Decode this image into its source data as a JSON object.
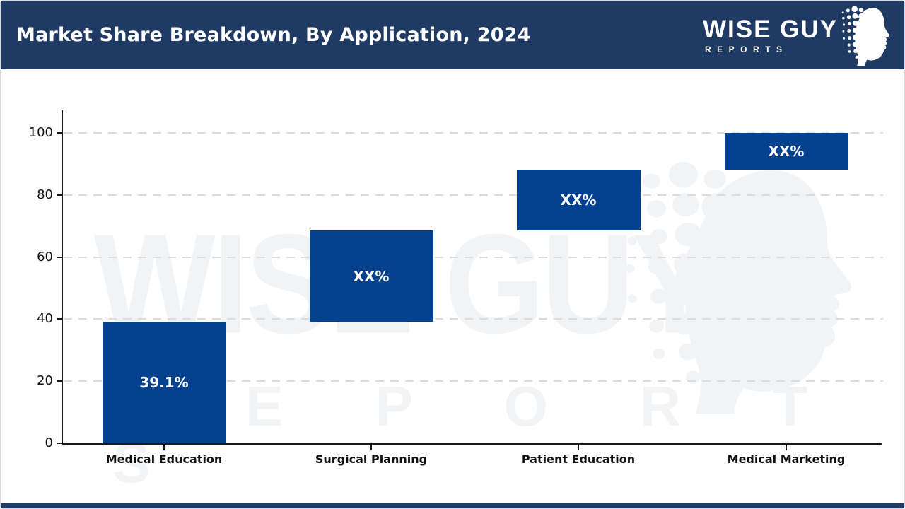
{
  "header": {
    "title": "Market Share Breakdown, By Application, 2024",
    "bg_color": "#1F3A63",
    "logo": {
      "line1": "WISE GUY",
      "line2": "REPORTS"
    }
  },
  "footer": {
    "bg_color": "#1F3A63"
  },
  "watermark": {
    "line1": "WISE GUY",
    "line2": "R E P O R T S",
    "color": "#F2F3F5"
  },
  "chart_data": {
    "type": "bar",
    "subtype": "waterfall",
    "title": "Market Share Breakdown, By Application, 2024",
    "xlabel": "",
    "ylabel": "",
    "categories": [
      "Medical Education",
      "Surgical Planning",
      "Patient Education",
      "Medical Marketing"
    ],
    "segments": [
      {
        "category": "Medical Education",
        "start": 0,
        "end": 39.1,
        "label": "39.1%"
      },
      {
        "category": "Surgical Planning",
        "start": 39.1,
        "end": 68.5,
        "label": "XX%"
      },
      {
        "category": "Patient Education",
        "start": 68.5,
        "end": 88.2,
        "label": "XX%"
      },
      {
        "category": "Medical Marketing",
        "start": 88.2,
        "end": 100,
        "label": "XX%"
      }
    ],
    "yticks": [
      0,
      20,
      40,
      60,
      80,
      100
    ],
    "ylim": [
      0,
      107
    ],
    "grid": "horizontal-dashed",
    "legend": "none",
    "bar_color": "#04428F",
    "bar_label_color": "#FFFFFF",
    "axis_color": "#1A1A1A",
    "gridline_color": "#DCDCDC"
  }
}
